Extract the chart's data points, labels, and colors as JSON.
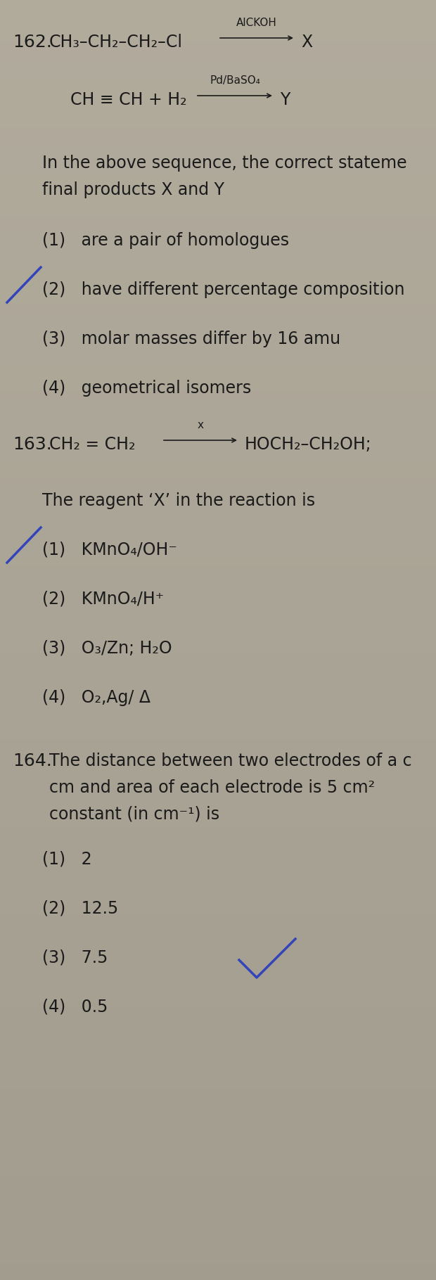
{
  "bg_color_top": "#c8c0b0",
  "bg_color_mid": "#d5ccbb",
  "bg_color_bot": "#c0b8a8",
  "text_color": "#1a1a1a",
  "dark_text": "#111111",
  "q162_num": "162.",
  "q162_line1_a": "CH",
  "q162_line1_b": "₃–CH₂–CH₂–Cl",
  "q162_arrow1_label": "AlCKOH",
  "q162_arrow1_end": "X",
  "q162_line2_a": "CH ≡ CH + H₂",
  "q162_arrow2_label": "Pd/BaSO₄",
  "q162_arrow2_end": "Y",
  "q162_q1": "In the above sequence, the correct stateme",
  "q162_q2": "final products X and Y",
  "q162_options": [
    "(1)   are a pair of homologues",
    "(2)   have different percentage composition",
    "(3)   molar masses differ by 16 amu",
    "(4)   geometrical isomers"
  ],
  "q163_num": "163.",
  "q163_line": "CH₂ = CH₂",
  "q163_arrow_label": "x",
  "q163_line_end": "HOCH₂–CH₂OH;",
  "q163_question": "The reagent ‘X’ in the reaction is",
  "q163_options": [
    "(1)   KMnO₄/OH⁻",
    "(2)   KMnO₄/H⁺",
    "(3)   O₃/Zn; H₂O",
    "(4)   O₂,Ag/ Δ"
  ],
  "q164_num": "164.",
  "q164_q1": "The distance between two electrodes of a c",
  "q164_q2": "cm and area of each electrode is 5 cm²",
  "q164_q3": "constant (in cm⁻¹) is",
  "q164_options": [
    "(1)   2",
    "(2)   12.5",
    "(3)   7.5",
    "(4)   0.5"
  ],
  "mark_color": "#3344bb",
  "font_main": 17,
  "font_num": 18,
  "font_opt": 17,
  "font_small": 11
}
